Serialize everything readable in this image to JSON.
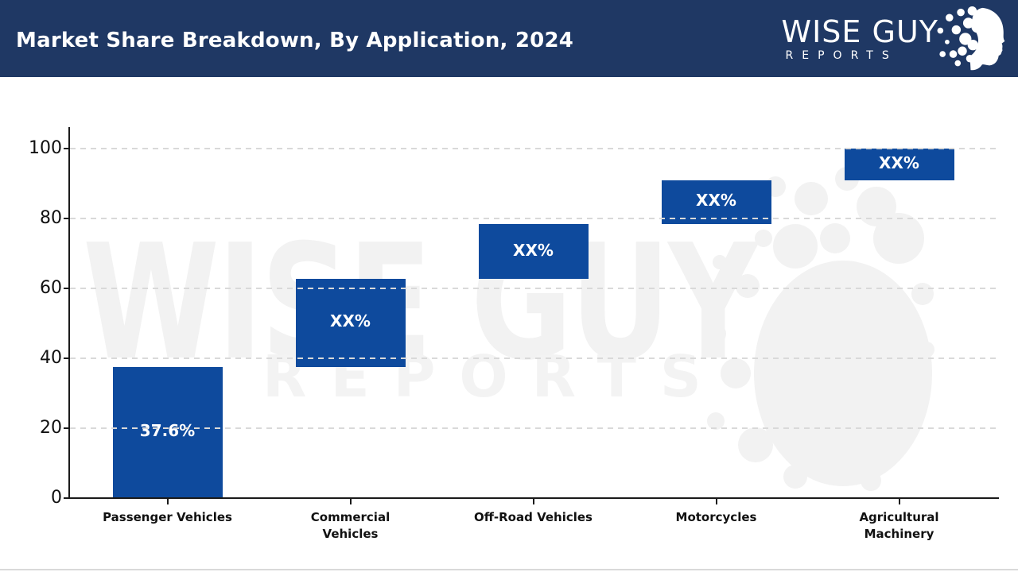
{
  "header": {
    "title": "Market Share Breakdown, By Application, 2024",
    "background_color": "#1f3864",
    "logo": {
      "brand_line1": "WISE GUY",
      "brand_line2": "REPORTS"
    }
  },
  "watermark": {
    "line1": "WISE GUY",
    "line2": "REPORTS"
  },
  "chart_data": {
    "type": "bar",
    "subtype": "waterfall",
    "title": "Market Share Breakdown, By Application, 2024",
    "categories": [
      "Passenger Vehicles",
      "Commercial\nVehicles",
      "Off-Road Vehicles",
      "Motorcycles",
      "Agricultural\nMachinery"
    ],
    "segments": [
      {
        "category": "Passenger Vehicles",
        "start": 0,
        "end": 37.6,
        "label": "37.6%"
      },
      {
        "category": "Commercial Vehicles",
        "start": 37.6,
        "end": 62.7,
        "label": "XX%"
      },
      {
        "category": "Off-Road Vehicles",
        "start": 62.7,
        "end": 78.4,
        "label": "XX%"
      },
      {
        "category": "Motorcycles",
        "start": 78.4,
        "end": 91.0,
        "label": "XX%"
      },
      {
        "category": "Agricultural Machinery",
        "start": 91.0,
        "end": 100.0,
        "label": "XX%"
      }
    ],
    "bar_color": "#0e4a9d",
    "bar_label_color": "#ffffff",
    "xlabel": "",
    "ylabel": "",
    "ylim": [
      0,
      100
    ],
    "yticks": [
      0,
      20,
      40,
      60,
      80,
      100
    ],
    "grid": {
      "axis": "y",
      "style": "dashed",
      "color": "#d9d9d9",
      "drawn_over_bars": true
    },
    "legend": "none"
  }
}
